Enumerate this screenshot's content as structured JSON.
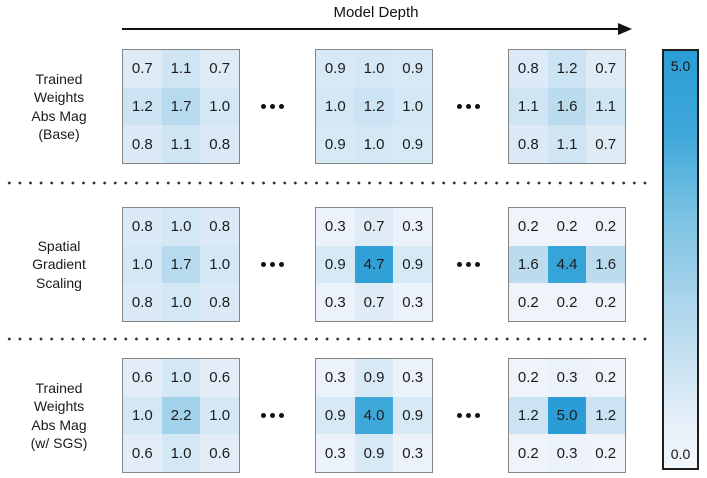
{
  "chart_data": {
    "type": "heatmap",
    "title": "Model Depth",
    "x_axis_label": "Model Depth",
    "layout_note": "3 rows of three 3x3 kernel heatmaps separated by ellipses along model depth; dotted separators between rows; shared colorbar at right",
    "ellipsis_symbol": "•••",
    "colorbar": {
      "min": 0.0,
      "max": 5.0,
      "min_label": "0.0",
      "max_label": "5.0"
    },
    "colormap_stops": [
      {
        "value": 0.0,
        "color": "#f2f7fb"
      },
      {
        "value": 0.5,
        "color": "#e7eff8"
      },
      {
        "value": 1.0,
        "color": "#d3e7f4"
      },
      {
        "value": 2.0,
        "color": "#abd5ec"
      },
      {
        "value": 3.0,
        "color": "#7cc3e3"
      },
      {
        "value": 4.0,
        "color": "#3fa8da"
      },
      {
        "value": 5.0,
        "color": "#2b9dd6"
      }
    ],
    "value_format_decimals": 1,
    "rows": [
      {
        "label_lines": [
          "Trained",
          "Weights",
          "Abs Mag",
          "(Base)"
        ],
        "grids": [
          [
            [
              0.7,
              1.1,
              0.7
            ],
            [
              1.2,
              1.7,
              1.0
            ],
            [
              0.8,
              1.1,
              0.8
            ]
          ],
          [
            [
              0.9,
              1.0,
              0.9
            ],
            [
              1.0,
              1.2,
              1.0
            ],
            [
              0.9,
              1.0,
              0.9
            ]
          ],
          [
            [
              0.8,
              1.2,
              0.7
            ],
            [
              1.1,
              1.6,
              1.1
            ],
            [
              0.8,
              1.1,
              0.7
            ]
          ]
        ]
      },
      {
        "label_lines": [
          "Spatial",
          "Gradient",
          "Scaling"
        ],
        "grids": [
          [
            [
              0.8,
              1.0,
              0.8
            ],
            [
              1.0,
              1.7,
              1.0
            ],
            [
              0.8,
              1.0,
              0.8
            ]
          ],
          [
            [
              0.3,
              0.7,
              0.3
            ],
            [
              0.9,
              4.7,
              0.9
            ],
            [
              0.3,
              0.7,
              0.3
            ]
          ],
          [
            [
              0.2,
              0.2,
              0.2
            ],
            [
              1.6,
              4.4,
              1.6
            ],
            [
              0.2,
              0.2,
              0.2
            ]
          ]
        ]
      },
      {
        "label_lines": [
          "Trained",
          "Weights",
          "Abs Mag",
          "(w/ SGS)"
        ],
        "grids": [
          [
            [
              0.6,
              1.0,
              0.6
            ],
            [
              1.0,
              2.2,
              1.0
            ],
            [
              0.6,
              1.0,
              0.6
            ]
          ],
          [
            [
              0.3,
              0.9,
              0.3
            ],
            [
              0.9,
              4.0,
              0.9
            ],
            [
              0.3,
              0.9,
              0.3
            ]
          ],
          [
            [
              0.2,
              0.3,
              0.2
            ],
            [
              1.2,
              5.0,
              1.2
            ],
            [
              0.2,
              0.3,
              0.2
            ]
          ]
        ]
      }
    ]
  }
}
